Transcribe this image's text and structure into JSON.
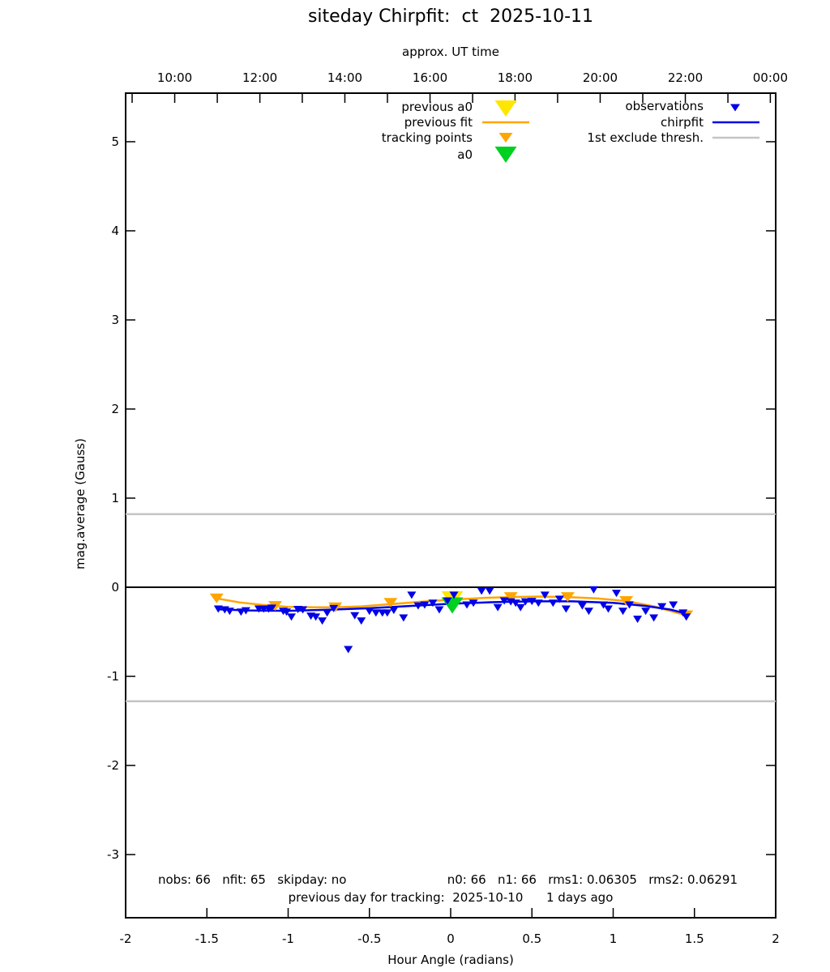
{
  "chart_data": {
    "type": "scatter",
    "title": "siteday Chirpfit:  ct  2025-10-11",
    "xlabel": "Hour Angle (radians)",
    "ylabel": "mag.average (Gauss)",
    "xlim": [
      -2,
      2
    ],
    "ylim": [
      -3.709,
      5.545
    ],
    "grid": false,
    "colors": {
      "background": "#ffffff",
      "axis": "#000000",
      "threshold": "#c4c4c4",
      "blue": "#0000e6",
      "orange": "#ffa500",
      "yellow": "#ffe600",
      "green": "#00d020"
    },
    "x_ticks": [
      {
        "v": -2,
        "label": "-2"
      },
      {
        "v": -1.5,
        "label": "-1.5"
      },
      {
        "v": -1,
        "label": "-1"
      },
      {
        "v": -0.5,
        "label": "-0.5"
      },
      {
        "v": 0,
        "label": "0"
      },
      {
        "v": 0.5,
        "label": "0.5"
      },
      {
        "v": 1,
        "label": "1"
      },
      {
        "v": 1.5,
        "label": "1.5"
      },
      {
        "v": 2,
        "label": "2"
      }
    ],
    "y_ticks": [
      {
        "v": -3,
        "label": "-3"
      },
      {
        "v": -2,
        "label": "-2"
      },
      {
        "v": -1,
        "label": "-1"
      },
      {
        "v": 0,
        "label": "0"
      },
      {
        "v": 1,
        "label": "1"
      },
      {
        "v": 2,
        "label": "2"
      },
      {
        "v": 3,
        "label": "3"
      },
      {
        "v": 4,
        "label": "4"
      },
      {
        "v": 5,
        "label": "5"
      }
    ],
    "top_axis": {
      "title": "approx. UT time",
      "labeled_ticks": [
        {
          "label": "10:00",
          "ha": -1.698
        },
        {
          "label": "12:00",
          "ha": -1.174
        },
        {
          "label": "14:00",
          "ha": -0.651
        },
        {
          "label": "16:00",
          "ha": -0.127
        },
        {
          "label": "18:00",
          "ha": 0.396
        },
        {
          "label": "20:00",
          "ha": 0.92
        },
        {
          "label": "22:00",
          "ha": 1.444
        },
        {
          "label": "00:00",
          "ha": 1.967
        }
      ],
      "hour_ticks_ha": [
        -1.96,
        -1.698,
        -1.436,
        -1.174,
        -0.913,
        -0.651,
        -0.389,
        -0.127,
        0.135,
        0.396,
        0.658,
        0.92,
        1.182,
        1.444,
        1.706,
        1.967
      ]
    },
    "zero_line": 0,
    "exclude_thresholds": [
      0.82,
      -1.28
    ],
    "legend": {
      "left": [
        {
          "label": "previous a0",
          "marker": "triangle",
          "size": "large",
          "color": "#ffe600"
        },
        {
          "label": "previous fit",
          "marker": "line",
          "color": "#ffa500"
        },
        {
          "label": "tracking points",
          "marker": "triangle",
          "size": "medium",
          "color": "#ffa500"
        },
        {
          "label": "a0",
          "marker": "triangle",
          "size": "large",
          "color": "#00d020"
        }
      ],
      "right": [
        {
          "label": "observations",
          "marker": "triangle",
          "size": "small",
          "color": "#0000e6"
        },
        {
          "label": "chirpfit",
          "marker": "line",
          "color": "#0000e6"
        },
        {
          "label": "1st exclude thresh.",
          "marker": "line",
          "color": "#c4c4c4"
        }
      ]
    },
    "series": {
      "observations": {
        "color": "#0000e6",
        "points": [
          [
            -1.43,
            -0.245
          ],
          [
            -1.39,
            -0.255
          ],
          [
            -1.36,
            -0.27
          ],
          [
            -1.29,
            -0.28
          ],
          [
            -1.26,
            -0.265
          ],
          [
            -1.18,
            -0.245
          ],
          [
            -1.15,
            -0.245
          ],
          [
            -1.12,
            -0.245
          ],
          [
            -1.1,
            -0.235
          ],
          [
            -1.03,
            -0.27
          ],
          [
            -1.01,
            -0.28
          ],
          [
            -0.98,
            -0.335
          ],
          [
            -0.94,
            -0.25
          ],
          [
            -0.91,
            -0.255
          ],
          [
            -0.86,
            -0.325
          ],
          [
            -0.83,
            -0.335
          ],
          [
            -0.79,
            -0.38
          ],
          [
            -0.76,
            -0.29
          ],
          [
            -0.72,
            -0.24
          ],
          [
            -0.63,
            -0.7
          ],
          [
            -0.59,
            -0.32
          ],
          [
            -0.55,
            -0.38
          ],
          [
            -0.5,
            -0.27
          ],
          [
            -0.46,
            -0.29
          ],
          [
            -0.42,
            -0.29
          ],
          [
            -0.39,
            -0.29
          ],
          [
            -0.35,
            -0.26
          ],
          [
            -0.29,
            -0.345
          ],
          [
            -0.24,
            -0.09
          ],
          [
            -0.2,
            -0.21
          ],
          [
            -0.16,
            -0.2
          ],
          [
            -0.11,
            -0.18
          ],
          [
            -0.07,
            -0.255
          ],
          [
            -0.02,
            -0.155
          ],
          [
            0.02,
            -0.09
          ],
          [
            0.1,
            -0.2
          ],
          [
            0.14,
            -0.18
          ],
          [
            0.19,
            -0.045
          ],
          [
            0.24,
            -0.045
          ],
          [
            0.29,
            -0.23
          ],
          [
            0.33,
            -0.155
          ],
          [
            0.37,
            -0.165
          ],
          [
            0.4,
            -0.18
          ],
          [
            0.43,
            -0.23
          ],
          [
            0.46,
            -0.165
          ],
          [
            0.5,
            -0.16
          ],
          [
            0.54,
            -0.18
          ],
          [
            0.58,
            -0.09
          ],
          [
            0.63,
            -0.18
          ],
          [
            0.67,
            -0.135
          ],
          [
            0.71,
            -0.245
          ],
          [
            0.81,
            -0.21
          ],
          [
            0.85,
            -0.27
          ],
          [
            0.88,
            -0.03
          ],
          [
            0.94,
            -0.2
          ],
          [
            0.97,
            -0.245
          ],
          [
            1.02,
            -0.07
          ],
          [
            1.06,
            -0.27
          ],
          [
            1.1,
            -0.2
          ],
          [
            1.15,
            -0.36
          ],
          [
            1.2,
            -0.27
          ],
          [
            1.25,
            -0.345
          ],
          [
            1.3,
            -0.22
          ],
          [
            1.37,
            -0.2
          ],
          [
            1.43,
            -0.29
          ],
          [
            1.45,
            -0.335
          ]
        ]
      },
      "chirpfit": {
        "color": "#0000e6",
        "points": [
          [
            -1.43,
            -0.248
          ],
          [
            -1.25,
            -0.26
          ],
          [
            -1.0,
            -0.265
          ],
          [
            -0.75,
            -0.252
          ],
          [
            -0.5,
            -0.235
          ],
          [
            -0.25,
            -0.21
          ],
          [
            0.0,
            -0.185
          ],
          [
            0.25,
            -0.168
          ],
          [
            0.5,
            -0.158
          ],
          [
            0.75,
            -0.158
          ],
          [
            1.0,
            -0.175
          ],
          [
            1.2,
            -0.21
          ],
          [
            1.35,
            -0.25
          ],
          [
            1.45,
            -0.295
          ]
        ]
      },
      "previous_fit": {
        "color": "#ffa500",
        "points": [
          [
            -1.44,
            -0.125
          ],
          [
            -1.3,
            -0.17
          ],
          [
            -1.15,
            -0.2
          ],
          [
            -1.0,
            -0.22
          ],
          [
            -0.85,
            -0.225
          ],
          [
            -0.71,
            -0.225
          ],
          [
            -0.55,
            -0.215
          ],
          [
            -0.37,
            -0.19
          ],
          [
            -0.2,
            -0.165
          ],
          [
            0.0,
            -0.14
          ],
          [
            0.2,
            -0.12
          ],
          [
            0.37,
            -0.11
          ],
          [
            0.55,
            -0.105
          ],
          [
            0.72,
            -0.11
          ],
          [
            0.9,
            -0.125
          ],
          [
            1.08,
            -0.155
          ],
          [
            1.25,
            -0.215
          ],
          [
            1.45,
            -0.315
          ]
        ]
      },
      "tracking_points": {
        "color": "#ffa500",
        "points": [
          [
            -1.44,
            -0.125
          ],
          [
            -1.08,
            -0.21
          ],
          [
            -0.71,
            -0.225
          ],
          [
            -0.37,
            -0.175
          ],
          [
            0.37,
            -0.11
          ],
          [
            0.72,
            -0.11
          ],
          [
            1.08,
            -0.155
          ],
          [
            1.45,
            -0.315
          ]
        ]
      },
      "previous_a0": {
        "color": "#ffe600",
        "point": [
          0.01,
          -0.135
        ]
      },
      "a0": {
        "color": "#00d020",
        "point": [
          0.01,
          -0.205
        ]
      }
    },
    "stats": {
      "line1_left": "nobs: 66   nfit: 65   skipday: no",
      "line1_right": "n0: 66   n1: 66   rms1: 0.06305   rms2: 0.06291",
      "line2": "previous day for tracking:  2025-10-10      1 days ago"
    }
  }
}
